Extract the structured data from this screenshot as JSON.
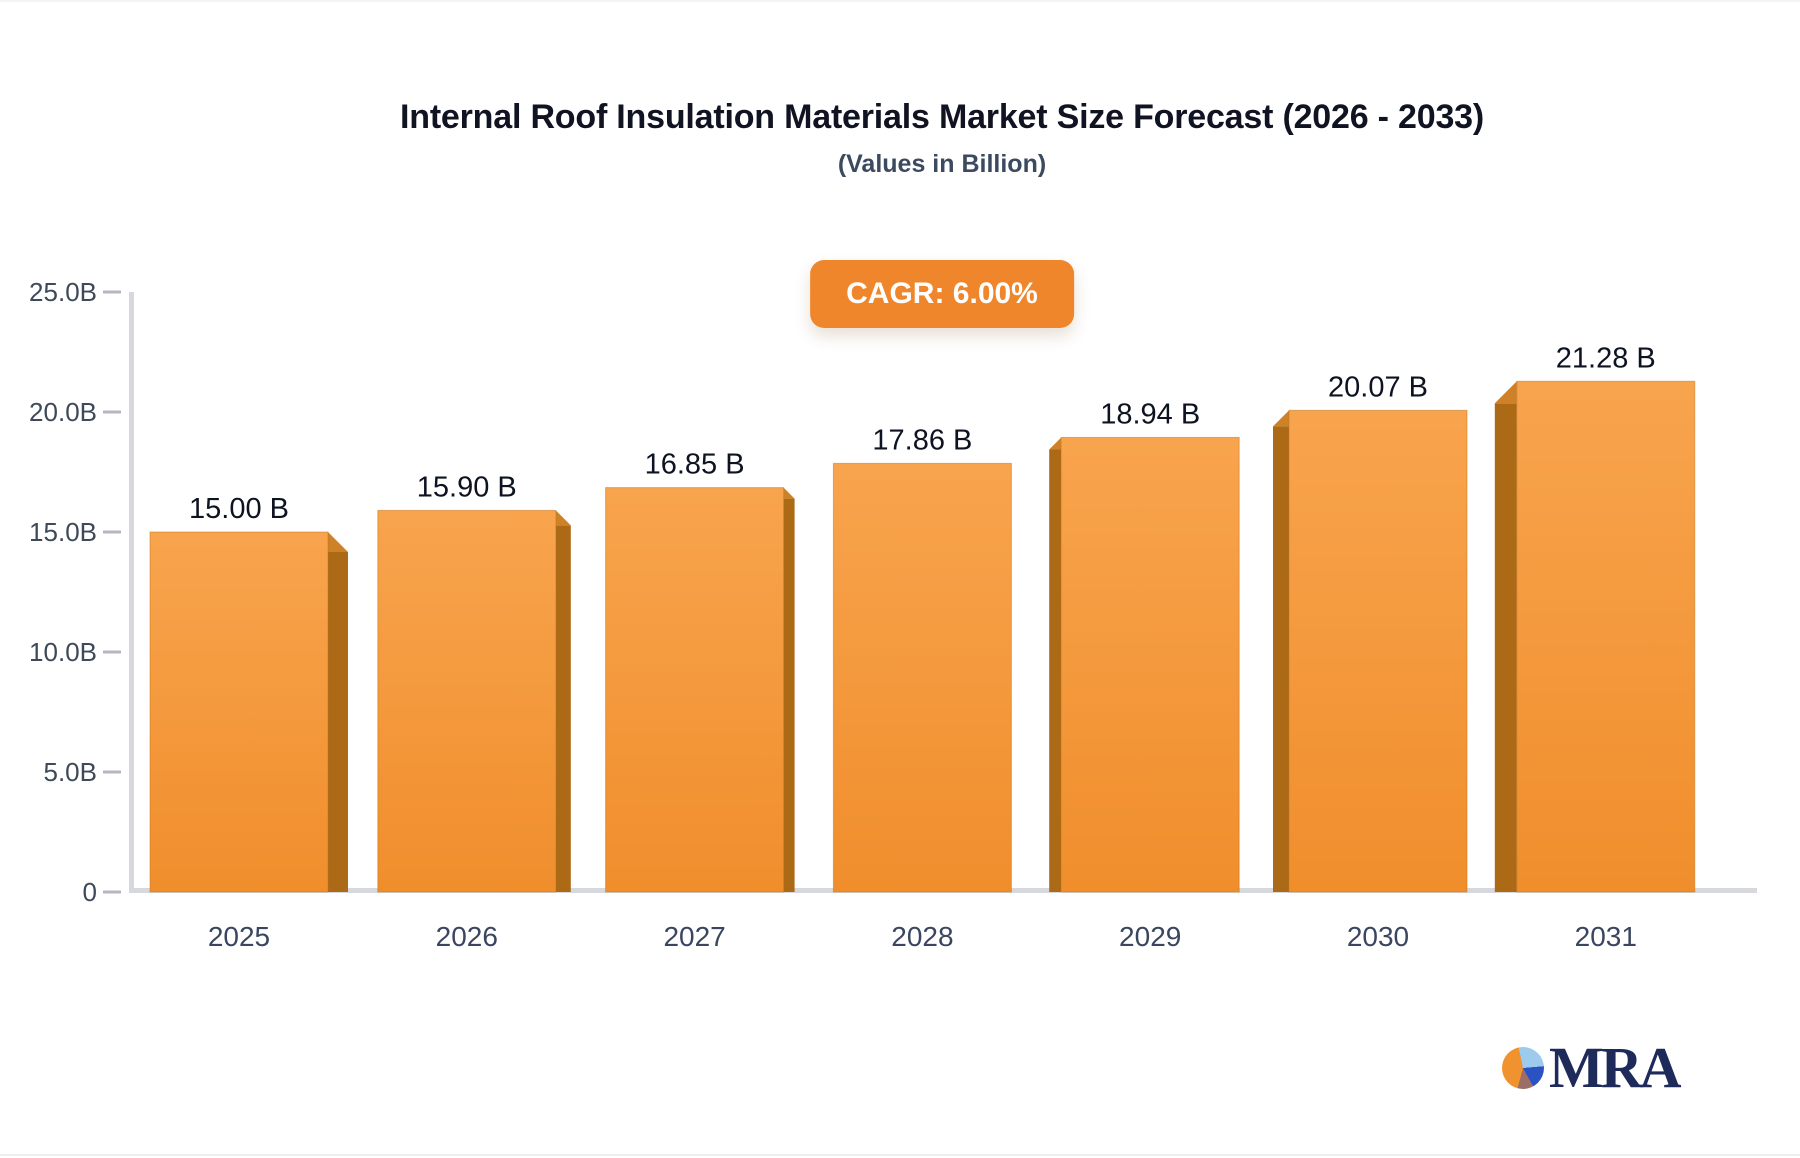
{
  "page": {
    "title": "Internal Roof Insulation Materials Market Size Forecast (2026 - 2033)",
    "subtitle": "(Values in Billion)",
    "cagr_badge": "CAGR: 6.00%",
    "brand": {
      "name": "MRA"
    },
    "colors": {
      "badge_bg": "#f0862b",
      "bar_front_top": "#f8a44e",
      "bar_front_bottom": "#f08e2c",
      "bar_side": "#ac6a17",
      "bar_bevel": "#ce8126",
      "axis_line": "#d6d8de",
      "tick": "#b3b7c0",
      "axis_text": "#3e4959",
      "x_label_text": "#3a4660",
      "value_label_text": "#0d1321"
    }
  },
  "chart_data": {
    "type": "bar",
    "title": "Internal Roof Insulation Materials Market Size Forecast (2026 - 2033)",
    "subtitle": "(Values in Billion)",
    "annotation": "CAGR: 6.00%",
    "categories": [
      "2025",
      "2026",
      "2027",
      "2028",
      "2029",
      "2030",
      "2031"
    ],
    "values": [
      15.0,
      15.9,
      16.85,
      17.86,
      18.94,
      20.07,
      21.28
    ],
    "value_labels": [
      "15.00 B",
      "15.90 B",
      "16.85 B",
      "17.86 B",
      "18.94 B",
      "20.07 B",
      "21.28 B"
    ],
    "unit": "Billion",
    "xlabel": "",
    "ylabel": "",
    "ylim": [
      0,
      25
    ],
    "y_ticks": [
      {
        "value": 25,
        "label": "25.0B"
      },
      {
        "value": 20,
        "label": "20.0B"
      },
      {
        "value": 15,
        "label": "15.0B"
      },
      {
        "value": 10,
        "label": "10.0B"
      },
      {
        "value": 5,
        "label": "5.0B"
      },
      {
        "value": 0,
        "label": "0"
      }
    ],
    "grid": false,
    "legend": false,
    "bar_style": "3d",
    "bar_color": "#f49733"
  }
}
